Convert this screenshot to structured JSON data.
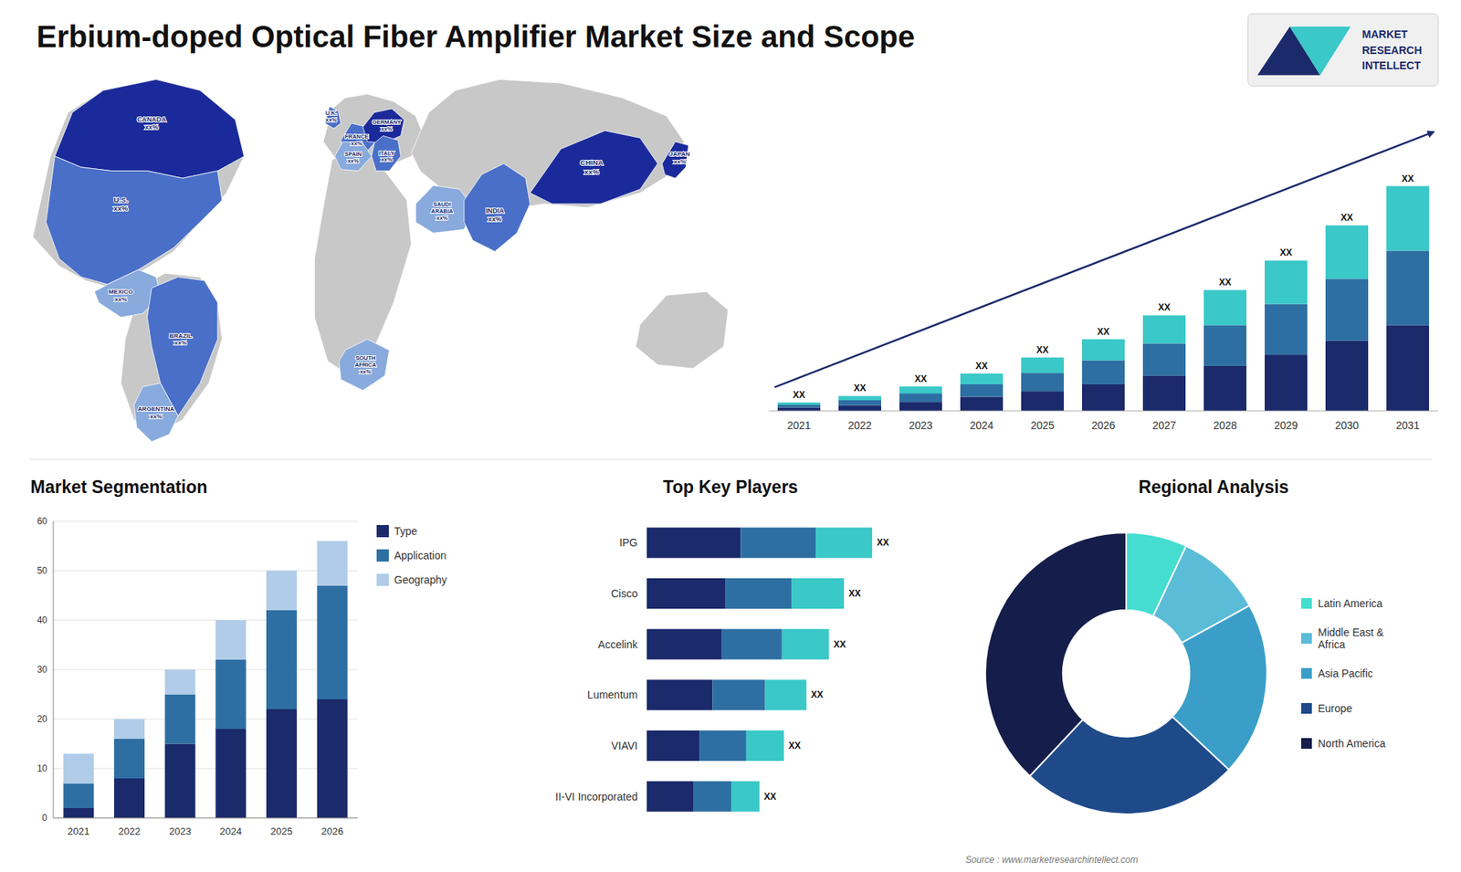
{
  "chart_data": [
    {
      "type": "bar",
      "title": "Erbium-doped Optical Fiber Amplifier Market Size and Scope",
      "stacked": true,
      "categories": [
        "2021",
        "2022",
        "2023",
        "2024",
        "2025",
        "2026",
        "2027",
        "2028",
        "2029",
        "2030",
        "2031"
      ],
      "series": [
        {
          "color": "#1b2a6b",
          "values": [
            1.2,
            2.0,
            3.2,
            5.0,
            7.0,
            9.5,
            12.5,
            16.0,
            20.0,
            25.0,
            30.5
          ]
        },
        {
          "color": "#2e6fa3",
          "values": [
            1.0,
            1.8,
            3.0,
            4.5,
            6.5,
            8.5,
            11.5,
            14.5,
            18.0,
            22.0,
            26.5
          ]
        },
        {
          "color": "#3ac8c8",
          "values": [
            0.8,
            1.5,
            2.5,
            3.8,
            5.5,
            7.5,
            10.0,
            12.5,
            15.5,
            19.0,
            23.0
          ],
          "value_labels": [
            "XX",
            "XX",
            "XX",
            "XX",
            "XX",
            "XX",
            "XX",
            "XX",
            "XX",
            "XX",
            "XX"
          ]
        }
      ],
      "ylim": [
        0,
        105.6
      ],
      "tick_labels": "x",
      "annotations": [
        "MARKET",
        "RESEARCH",
        "INTELLECT",
        "Source : www.marketresearchintellect.com"
      ]
    },
    {
      "type": "map",
      "annotations": [
        "CANADA\nxx%",
        "U.S.\nxx%",
        "MEXICO\nxx%",
        "BRAZIL\nxx%",
        "ARGENTINA\nxx%",
        "U.K.\nxx%",
        "FRANCE\nxx%",
        "SPAIN\nxx%",
        "GERMANY\nxx%",
        "ITALY\nxx%",
        "SAUDI\nARABIA\nxx%",
        "SOUTH\nAFRICA\nxx%",
        "CHINA\nxx%",
        "INDIA\nxx%",
        "JAPAN\nxx%"
      ]
    },
    {
      "type": "bar",
      "title": "Market Segmentation",
      "stacked": true,
      "categories": [
        "2021",
        "2022",
        "2023",
        "2024",
        "2025",
        "2026"
      ],
      "series": [
        {
          "name": "Type",
          "color": "#1b2a6b",
          "values": [
            2,
            8,
            15,
            18,
            22,
            24
          ]
        },
        {
          "name": "Application",
          "color": "#2e6fa3",
          "values": [
            5,
            8,
            10,
            14,
            20,
            23
          ]
        },
        {
          "name": "Geography",
          "color": "#b0cce8",
          "values": [
            6,
            4,
            5,
            8,
            8,
            9
          ]
        }
      ],
      "ylim": [
        0,
        60
      ],
      "yticks": [
        0,
        10,
        20,
        30,
        40,
        50,
        60
      ],
      "grid": true,
      "legend": "right"
    },
    {
      "type": "bar",
      "title": "Top Key Players",
      "orientation": "horizontal",
      "stacked": true,
      "categories": [
        "IPG",
        "Cisco",
        "Accelink",
        "Lumentum",
        "VIAVI",
        "II-VI Incorporated"
      ],
      "series": [
        {
          "color": "#1b2a6b",
          "values": [
            5.0,
            4.2,
            4.0,
            3.5,
            2.8,
            2.5
          ]
        },
        {
          "color": "#2e6fa3",
          "values": [
            4.0,
            3.5,
            3.2,
            2.8,
            2.5,
            2.0
          ]
        },
        {
          "color": "#3ac8c8",
          "values": [
            3.0,
            2.8,
            2.5,
            2.2,
            2.0,
            1.5
          ],
          "value_labels": [
            "XX",
            "XX",
            "XX",
            "XX",
            "XX",
            "XX"
          ]
        }
      ],
      "xlim": [
        0,
        15.6
      ],
      "tick_labels": "y"
    },
    {
      "type": "pie",
      "title": "Regional Analysis",
      "categories": [
        "Latin America",
        "Middle East &\nAfrica",
        "Asia Pacific",
        "Europe",
        "North America"
      ],
      "values": [
        7,
        10,
        20,
        25,
        38
      ],
      "colors": [
        "#44ddd0",
        "#5bbcd8",
        "#3a9ec8",
        "#1e4a8a",
        "#151d4a"
      ],
      "legend": "right"
    }
  ]
}
